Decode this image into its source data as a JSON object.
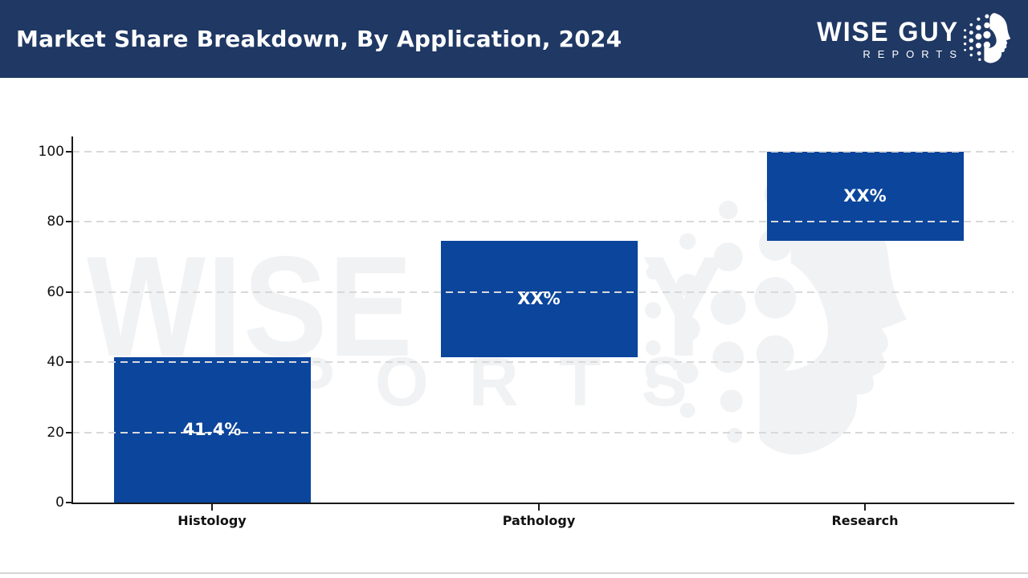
{
  "header": {
    "title": "Market Share Breakdown, By Application, 2024",
    "logo": {
      "line1": "WISE GUY",
      "line2": "REPORTS"
    }
  },
  "watermark": {
    "line1": "WISE GUY",
    "line2": "REPORTS"
  },
  "chart_data": {
    "type": "bar",
    "subtype": "waterfall-segments",
    "title": "Market Share Breakdown, By Application, 2024",
    "categories": [
      "Histology",
      "Pathology",
      "Research"
    ],
    "segments": [
      {
        "category": "Histology",
        "start": 0,
        "end": 41.4,
        "label": "41.4%"
      },
      {
        "category": "Pathology",
        "start": 41.4,
        "end": 74.6,
        "label": "XX%"
      },
      {
        "category": "Research",
        "start": 74.6,
        "end": 100,
        "label": "XX%"
      }
    ],
    "xlabel": "",
    "ylabel": "",
    "ylim": [
      0,
      100
    ],
    "yticks": [
      0,
      20,
      40,
      60,
      80,
      100
    ],
    "grid": "dashed horizontal",
    "legend": "none"
  },
  "colors": {
    "header_bg": "#1f3864",
    "bar": "#0b459c",
    "grid": "#d9d9d9",
    "axis": "#1a1a1a",
    "watermark": "#f1f2f4"
  }
}
